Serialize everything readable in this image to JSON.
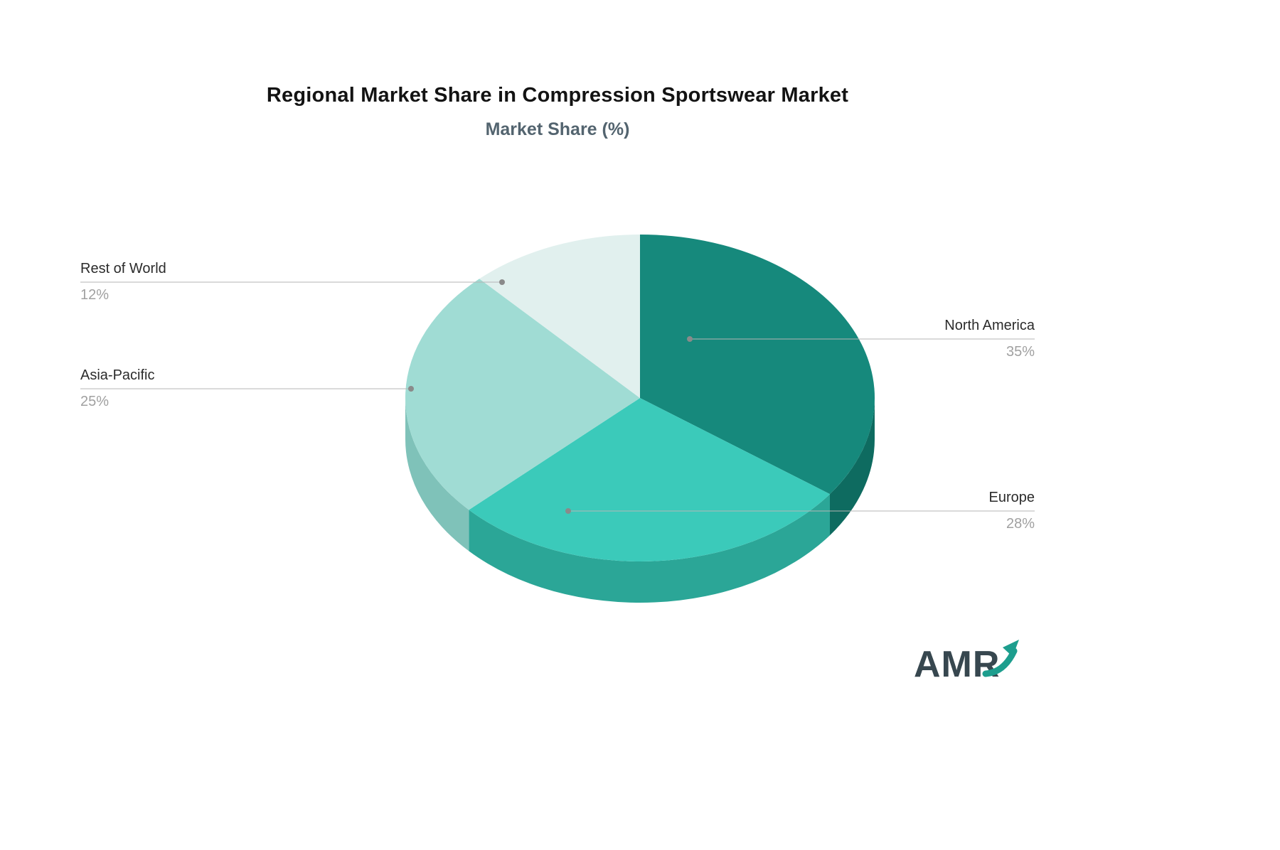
{
  "chart_data": {
    "type": "pie",
    "title": "Regional Market Share in Compression Sportswear Market",
    "subtitle": "Market Share (%)",
    "unit": "%",
    "style": "3d",
    "start_angle_deg": 0,
    "direction": "clockwise",
    "legend": "none",
    "leader_line_color": "#b5b5b5",
    "leader_dot_color": "#8a8a8a",
    "slices": [
      {
        "label": "North America",
        "value": 35,
        "display": "35%",
        "color": "#16897c",
        "side_color": "#0e6b60"
      },
      {
        "label": "Europe",
        "value": 28,
        "display": "28%",
        "color": "#3bcaba",
        "side_color": "#2ba697"
      },
      {
        "label": "Asia-Pacific",
        "value": 25,
        "display": "25%",
        "color": "#a0dcd4",
        "side_color": "#7fc2b9"
      },
      {
        "label": "Rest of World",
        "value": 12,
        "display": "12%",
        "color": "#e1f0ee",
        "side_color": "#c5ded9"
      }
    ]
  },
  "logo": {
    "text": "AMR",
    "text_color": "#37474f",
    "arrow_color": "#1d9e8e"
  }
}
